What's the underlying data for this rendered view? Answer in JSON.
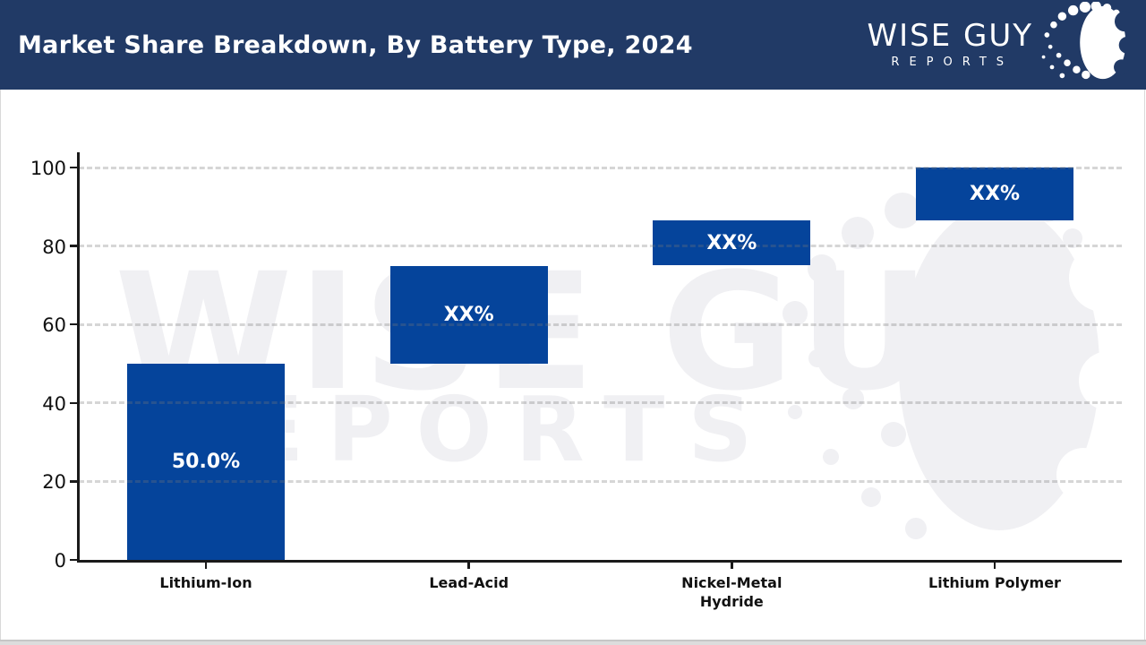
{
  "header": {
    "title": "Market Share Breakdown, By Battery Type, 2024",
    "logo": {
      "line1": "WISE GUY",
      "line2": "REPORTS"
    }
  },
  "watermark": {
    "line1": "WISE GUY",
    "line2": "REPORTS"
  },
  "colors": {
    "header_navy": "#213a66",
    "bar_blue": "#05449b",
    "axis_black": "#1a1a1a",
    "gridline_gray": "rgba(120,120,120,0.30)",
    "watermark_gray": "#f0f0f3",
    "label_white": "#ffffff"
  },
  "chart_data": {
    "type": "bar",
    "subtype": "waterfall-stacked-breakdown",
    "title": "Market Share Breakdown, By Battery Type, 2024",
    "categories": [
      "Lithium-Ion",
      "Lead-Acid",
      "Nickel-Metal Hydride",
      "Lithium Polymer"
    ],
    "segments": [
      {
        "label": "Lithium-Ion",
        "start": 0,
        "end": 50,
        "value_label": "50.0%"
      },
      {
        "label": "Lead-Acid",
        "start": 50,
        "end": 75,
        "value_label": "XX%"
      },
      {
        "label": "Nickel-Metal Hydride",
        "start": 75,
        "end": 86.5,
        "value_label": "XX%"
      },
      {
        "label": "Lithium Polymer",
        "start": 86.5,
        "end": 100,
        "value_label": "XX%"
      }
    ],
    "yticks": [
      0,
      20,
      40,
      60,
      80,
      100
    ],
    "ylim": [
      0,
      100
    ],
    "xlabel": "",
    "ylabel": "",
    "grid": "horizontal-dashed",
    "legend": "none"
  }
}
